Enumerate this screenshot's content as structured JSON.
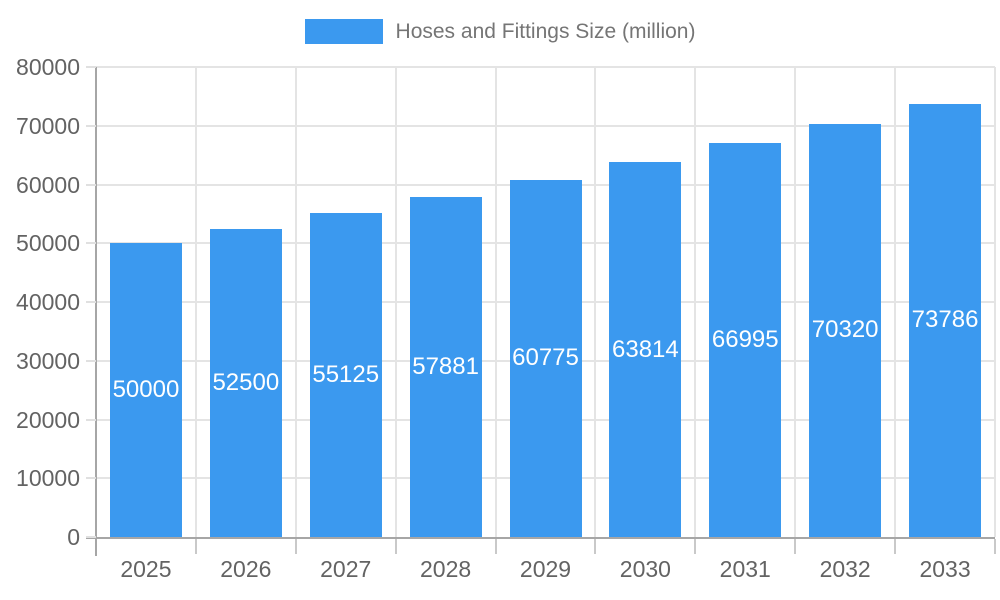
{
  "legend": {
    "label": "Hoses and Fittings Size (million)"
  },
  "chart_data": {
    "type": "bar",
    "title": "Hoses and Fittings Size (million)",
    "series": [
      {
        "name": "Hoses and Fittings Size (million)",
        "values": [
          50000,
          52500,
          55125,
          57881,
          60775,
          63814,
          66995,
          70320,
          73786
        ]
      }
    ],
    "categories": [
      "2025",
      "2026",
      "2027",
      "2028",
      "2029",
      "2030",
      "2031",
      "2032",
      "2033"
    ],
    "values": [
      50000,
      52500,
      55125,
      57881,
      60775,
      63814,
      66995,
      70320,
      73786
    ],
    "bar_labels": [
      "50000",
      "52500",
      "55125",
      "57881",
      "60775",
      "63814",
      "66995",
      "70320",
      "73786"
    ],
    "xlabel": "",
    "ylabel": "",
    "ylim": [
      0,
      80000
    ],
    "ytick_step": 10000,
    "ytick_labels": [
      "0",
      "10000",
      "20000",
      "30000",
      "40000",
      "50000",
      "60000",
      "70000",
      "80000"
    ],
    "grid": true,
    "legend_position": "top",
    "colors": {
      "bar": "#3b99ef",
      "bar_label": "#ffffff",
      "axis_line": "#a6a6a6",
      "gridline": "#e4e4e4",
      "y_tick": "#e0e0e0",
      "x_tick": "#c9c9c9",
      "axis_text": "#636363",
      "legend_text": "#757575",
      "background": "#ffffff"
    }
  }
}
